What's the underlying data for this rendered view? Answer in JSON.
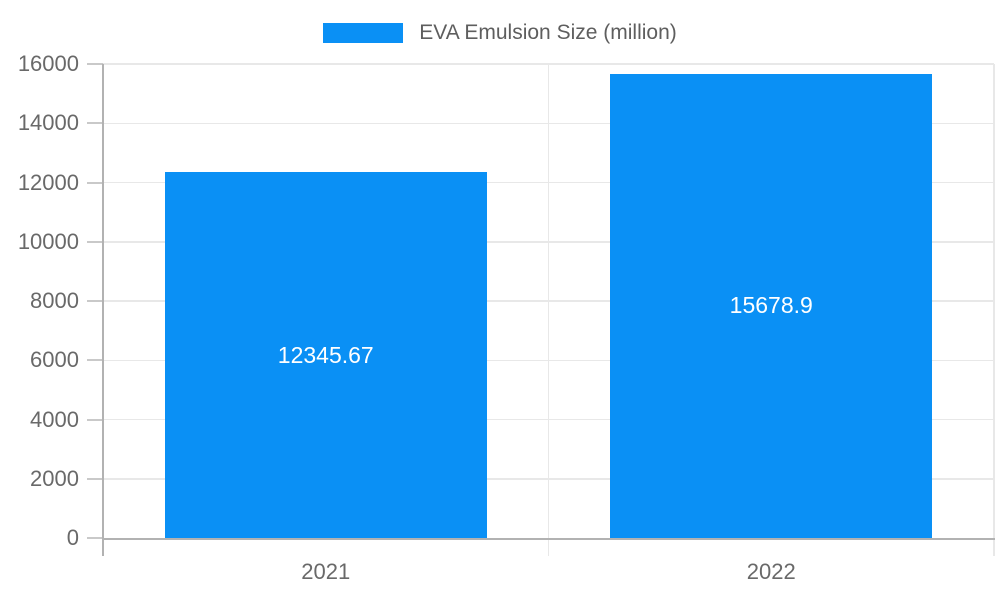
{
  "chart_data": {
    "type": "bar",
    "legend_label": "EVA Emulsion Size (million)",
    "legend_position": "top",
    "categories": [
      "2021",
      "2022"
    ],
    "series": [
      {
        "name": "EVA Emulsion Size (million)",
        "values": [
          12345.67,
          15678.9
        ]
      }
    ],
    "value_labels": [
      "12345.67",
      "15678.9"
    ],
    "title": "",
    "xlabel": "",
    "ylabel": "",
    "ylim": [
      0,
      16000
    ],
    "ytick_step": 2000,
    "ytick_labels": [
      "0",
      "2000",
      "4000",
      "6000",
      "8000",
      "10000",
      "12000",
      "14000",
      "16000"
    ],
    "grid": true,
    "colors": {
      "bar": "#0a90f5",
      "grid": "#e8e8e8",
      "axis": "#b2b2b2",
      "tick": "#c9c9c9",
      "axis_label_text": "#696969",
      "legend_text": "#5e5e5e",
      "value_label_text": "#ffffff",
      "background": "#ffffff"
    }
  }
}
